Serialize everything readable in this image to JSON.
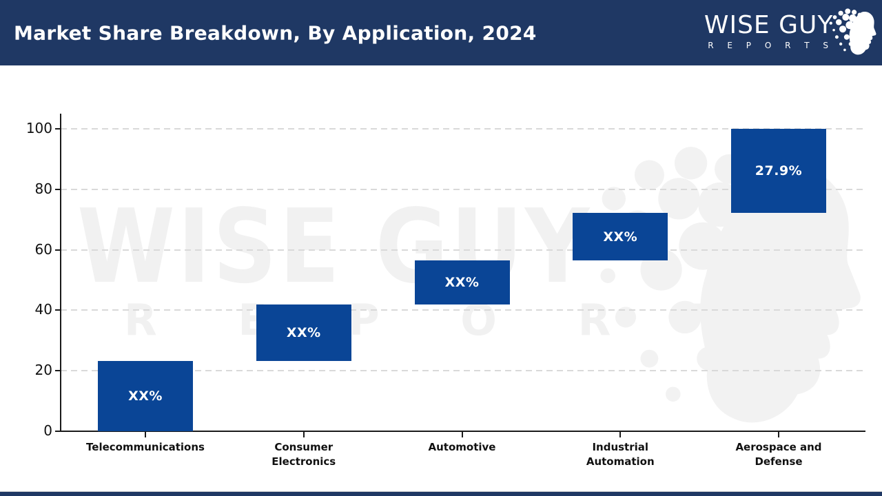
{
  "colors": {
    "header_bg": "#1f3864",
    "footer_bg": "#1f3864",
    "bar": "#0a4596",
    "grid": "#d9d9d9",
    "axis": "#1a1a1a",
    "watermark": "#f1f1f1",
    "value_label": "#ffffff"
  },
  "header": {
    "title": "Market Share Breakdown, By Application, 2024",
    "logo_line1": "WISE GUY",
    "logo_line2": "R E P O R T S"
  },
  "watermark": {
    "line1": "WISE GUY",
    "line2": "R E P O R T S"
  },
  "chart_data": {
    "type": "bar",
    "variant": "waterfall",
    "title": "Market Share Breakdown, By Application, 2024",
    "xlabel": "",
    "ylabel": "",
    "ylim": [
      0,
      100
    ],
    "yticks": [
      0,
      20,
      40,
      60,
      80,
      100
    ],
    "grid": "horizontal-dashed",
    "legend": false,
    "categories": [
      "Telecommunications",
      "Consumer Electronics",
      "Automotive",
      "Industrial Automation",
      "Aerospace and Defense"
    ],
    "category_lines": [
      [
        "Telecommunications"
      ],
      [
        "Consumer",
        "Electronics"
      ],
      [
        "Automotive"
      ],
      [
        "Industrial",
        "Automation"
      ],
      [
        "Aerospace and",
        "Defense"
      ]
    ],
    "segments": [
      {
        "category": "Telecommunications",
        "start": 0,
        "end": 23.3,
        "label": "XX%"
      },
      {
        "category": "Consumer Electronics",
        "start": 23.3,
        "end": 41.9,
        "label": "XX%"
      },
      {
        "category": "Automotive",
        "start": 41.9,
        "end": 56.5,
        "label": "XX%"
      },
      {
        "category": "Industrial Automation",
        "start": 56.5,
        "end": 72.1,
        "label": "XX%"
      },
      {
        "category": "Aerospace and Defense",
        "start": 72.1,
        "end": 100,
        "label": "27.9%"
      }
    ]
  }
}
